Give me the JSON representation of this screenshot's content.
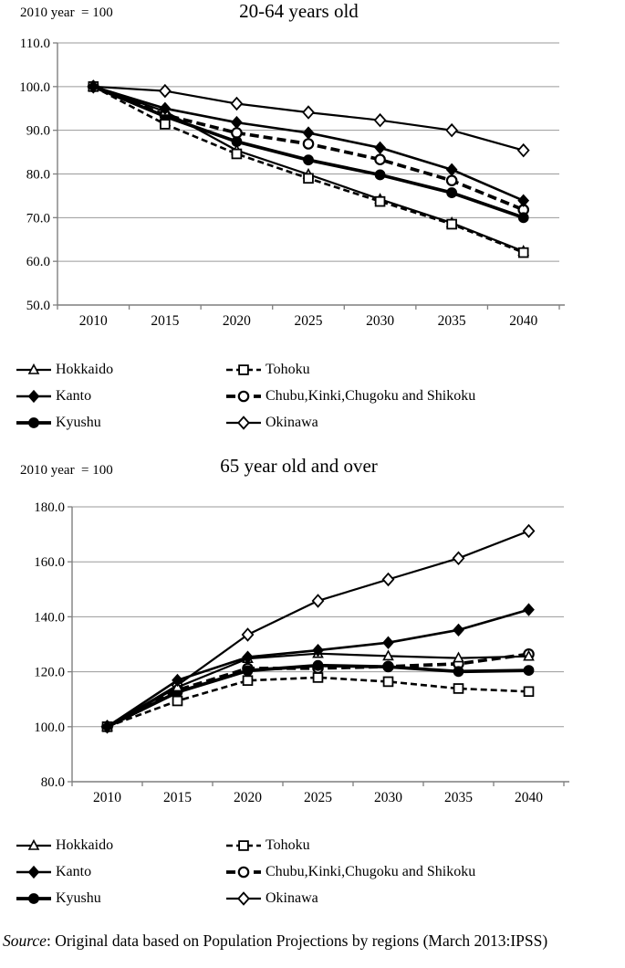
{
  "page": {
    "background": "#ffffff",
    "line_color": "#000000",
    "grid_color": "#9a9a9a",
    "axis_color": "#7f7f7f"
  },
  "source": {
    "prefix": "Source",
    "text": ": Original data based on Population Projections by regions (March 2013:IPSS)"
  },
  "chart_data": [
    {
      "type": "line",
      "title": "20-64 years old",
      "note": "2010 year  = 100",
      "categories": [
        "2010",
        "2015",
        "2020",
        "2025",
        "2030",
        "2035",
        "2040"
      ],
      "ylim": [
        50,
        110
      ],
      "ytick_step": 10,
      "ytick_labels": [
        "110.0",
        "100.0",
        "90.0",
        "80.0",
        "70.0",
        "60.0",
        "50.0"
      ],
      "grid": true,
      "legend_position": "below",
      "legend_columns": [
        [
          "Hokkaido",
          "Kanto",
          "Kyushu"
        ],
        [
          "Tohoku",
          "Chubu,Kinki,Chugoku and Shikoku",
          "Okinawa"
        ]
      ],
      "series": [
        {
          "name": "Hokkaido",
          "marker": "triangle-open",
          "line": "solid",
          "weight": "thin",
          "values": [
            100,
            94.3,
            85.4,
            79.9,
            74.2,
            68.8,
            62.3
          ]
        },
        {
          "name": "Tohoku",
          "marker": "square-open",
          "line": "dashed",
          "weight": "medium",
          "values": [
            100,
            91.4,
            84.6,
            79.0,
            73.7,
            68.5,
            62.0
          ]
        },
        {
          "name": "Kanto",
          "marker": "diamond-filled",
          "line": "solid",
          "weight": "medium",
          "values": [
            100,
            95.0,
            91.8,
            89.4,
            86.0,
            81.0,
            73.9
          ]
        },
        {
          "name": "Chubu,Kinki,Chugoku and Shikoku",
          "marker": "circle-open",
          "line": "dashed",
          "weight": "thick",
          "values": [
            100,
            93.5,
            89.4,
            86.9,
            83.3,
            78.5,
            71.8
          ]
        },
        {
          "name": "Kyushu",
          "marker": "circle-filled",
          "line": "solid",
          "weight": "thick",
          "values": [
            100,
            93.2,
            87.4,
            83.2,
            79.8,
            75.7,
            70.0
          ]
        },
        {
          "name": "Okinawa",
          "marker": "diamond-open",
          "line": "solid",
          "weight": "thin",
          "values": [
            100,
            99.0,
            96.1,
            94.1,
            92.3,
            90.0,
            85.4
          ]
        }
      ]
    },
    {
      "type": "line",
      "title": "65 year old and over",
      "note": "2010 year  = 100",
      "categories": [
        "2010",
        "2015",
        "2020",
        "2025",
        "2030",
        "2035",
        "2040"
      ],
      "ylim": [
        80,
        180
      ],
      "ytick_step": 20,
      "ytick_labels": [
        "180.0",
        "160.0",
        "140.0",
        "120.0",
        "100.0",
        "80.0"
      ],
      "grid": true,
      "legend_position": "below",
      "legend_columns": [
        [
          "Hokkaido",
          "Kanto",
          "Kyushu"
        ],
        [
          "Tohoku",
          "Chubu,Kinki,Chugoku and Shikoku",
          "Okinawa"
        ]
      ],
      "series": [
        {
          "name": "Hokkaido",
          "marker": "triangle-open",
          "line": "solid",
          "weight": "thin",
          "values": [
            100,
            114.4,
            124.8,
            126.6,
            125.7,
            125.0,
            125.6
          ]
        },
        {
          "name": "Tohoku",
          "marker": "square-open",
          "line": "dashed",
          "weight": "medium",
          "values": [
            100,
            109.4,
            116.8,
            117.9,
            116.4,
            113.9,
            112.8
          ]
        },
        {
          "name": "Kanto",
          "marker": "diamond-filled",
          "line": "solid",
          "weight": "medium",
          "values": [
            100,
            116.9,
            125.3,
            127.8,
            130.6,
            135.2,
            142.6
          ]
        },
        {
          "name": "Chubu,Kinki,Chugoku and Shikoku",
          "marker": "circle-open",
          "line": "dashed",
          "weight": "thick",
          "values": [
            100,
            113.3,
            121.2,
            121.3,
            121.9,
            122.9,
            126.4
          ]
        },
        {
          "name": "Kyushu",
          "marker": "circle-filled",
          "line": "solid",
          "weight": "thick",
          "values": [
            100,
            112.6,
            120.4,
            122.3,
            121.8,
            120.1,
            120.5
          ]
        },
        {
          "name": "Okinawa",
          "marker": "diamond-open",
          "line": "solid",
          "weight": "thin",
          "values": [
            100,
            115.1,
            133.5,
            145.8,
            153.6,
            161.3,
            171.2
          ]
        }
      ]
    }
  ]
}
